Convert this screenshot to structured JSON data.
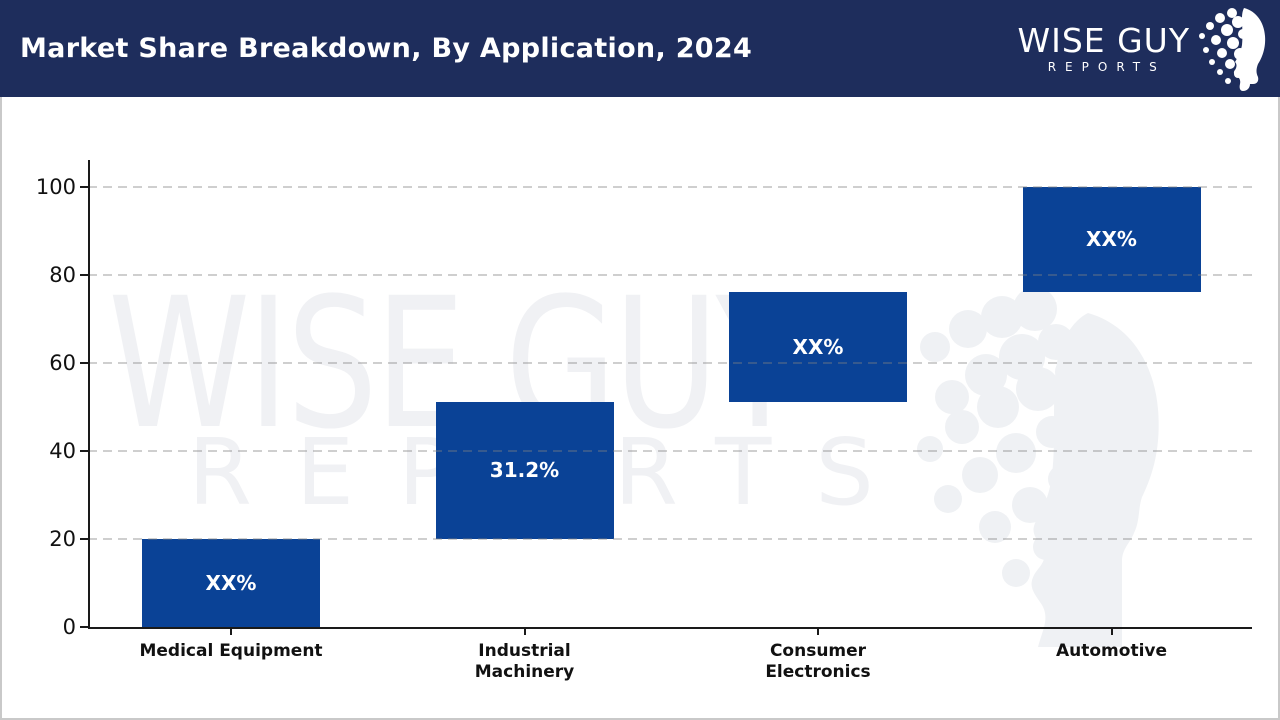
{
  "header": {
    "title": "Market Share Breakdown, By Application, 2024",
    "logo": {
      "line1": "WISE GUY",
      "line2": "REPORTS"
    }
  },
  "watermark": {
    "line1": "WISE GUY",
    "line2": "REPORTS"
  },
  "chart_data": {
    "type": "bar",
    "subtype": "floating-segment-waterfall",
    "title": "Market Share Breakdown, By Application, 2024",
    "categories": [
      "Medical Equipment",
      "Industrial\nMachinery",
      "Consumer\nElectronics",
      "Automotive"
    ],
    "segments": [
      {
        "category": "Medical Equipment",
        "start": 0,
        "end": 20,
        "label": "XX%"
      },
      {
        "category": "Industrial Machinery",
        "start": 20,
        "end": 51.2,
        "label": "31.2%",
        "value": 31.2
      },
      {
        "category": "Consumer Electronics",
        "start": 51.2,
        "end": 76.2,
        "label": "XX%"
      },
      {
        "category": "Automotive",
        "start": 76.2,
        "end": 100,
        "label": "XX%"
      }
    ],
    "xlabel": "",
    "ylabel": "",
    "ylim": [
      0,
      100
    ],
    "yticks": [
      0,
      20,
      40,
      60,
      80,
      100
    ],
    "grid": {
      "axis": "y",
      "style": "dashed",
      "above_bars": true
    },
    "legend": "none",
    "colors": {
      "bar": "#0a4296",
      "bar_label": "#ffffff",
      "axis": "#1a1a1a",
      "tick_label": "#111111",
      "header_bg": "#1e2d5c",
      "header_text": "#ffffff",
      "watermark": "#f0f1f4",
      "gridline": "#d2d2d2"
    }
  }
}
